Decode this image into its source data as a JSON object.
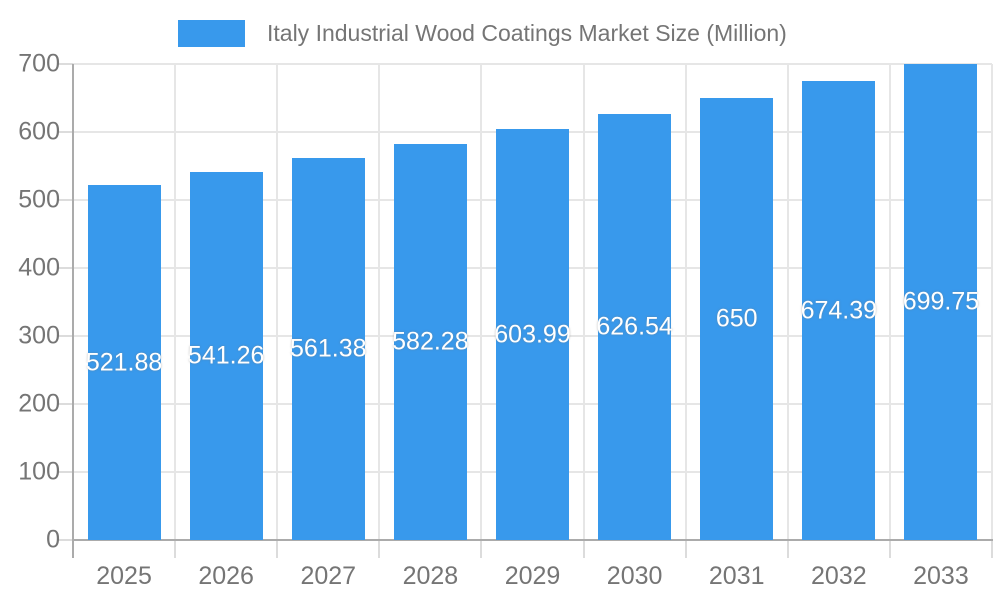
{
  "legend": {
    "label": "Italy Industrial Wood Coatings Market Size (Million)"
  },
  "chart_data": {
    "type": "bar",
    "title": "Italy Industrial Wood Coatings Market Size (Million)",
    "categories": [
      "2025",
      "2026",
      "2027",
      "2028",
      "2029",
      "2030",
      "2031",
      "2032",
      "2033"
    ],
    "values": [
      521.88,
      541.26,
      561.38,
      582.28,
      603.99,
      626.54,
      650,
      674.39,
      699.75
    ],
    "value_labels": [
      "521.88",
      "541.26",
      "561.38",
      "582.28",
      "603.99",
      "626.54",
      "650",
      "674.39",
      "699.75"
    ],
    "xlabel": "",
    "ylabel": "",
    "ylim": [
      0,
      700
    ],
    "yticks": [
      0,
      100,
      200,
      300,
      400,
      500,
      600,
      700
    ],
    "grid": true,
    "legend_position": "top",
    "colors": {
      "bar": "#3899EC",
      "grid": "#E6E6E6",
      "tick": "#DCDCDC",
      "axis": "#ABABAB",
      "text": "#757575",
      "value_label": "#FFFFFF",
      "background": "#FFFFFF"
    }
  }
}
